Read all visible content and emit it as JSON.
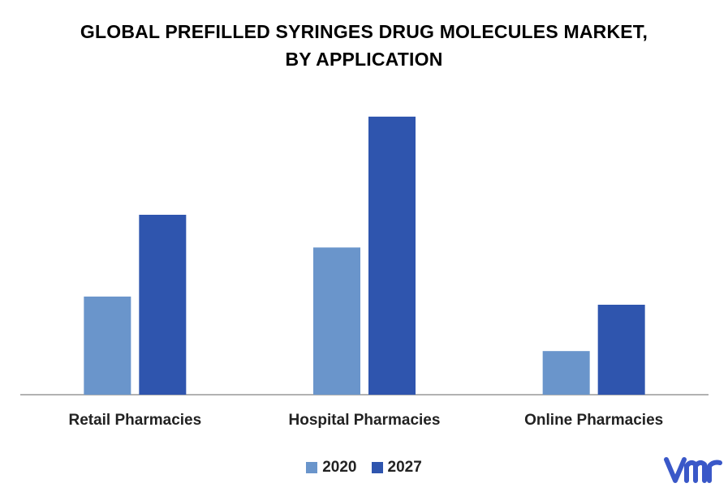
{
  "title": {
    "line1": "GLOBAL PREFILLED SYRINGES DRUG MOLECULES MARKET,",
    "line2": "BY APPLICATION"
  },
  "colors": {
    "s2020": "#6a95cb",
    "s2027": "#2f55ae",
    "axis": "#999999",
    "logo": "#3a58c8"
  },
  "logo_icon": "vmr-logo",
  "chart_data": {
    "type": "bar",
    "categories": [
      "Retail Pharmacies",
      "Hospital Pharmacies",
      "Online Pharmacies"
    ],
    "series": [
      {
        "name": "2020",
        "values": [
          3.6,
          5.4,
          1.6
        ]
      },
      {
        "name": "2027",
        "values": [
          6.6,
          10.2,
          3.3
        ]
      }
    ],
    "ylim": [
      0,
      11
    ],
    "grid": false,
    "legend": "bottom"
  }
}
